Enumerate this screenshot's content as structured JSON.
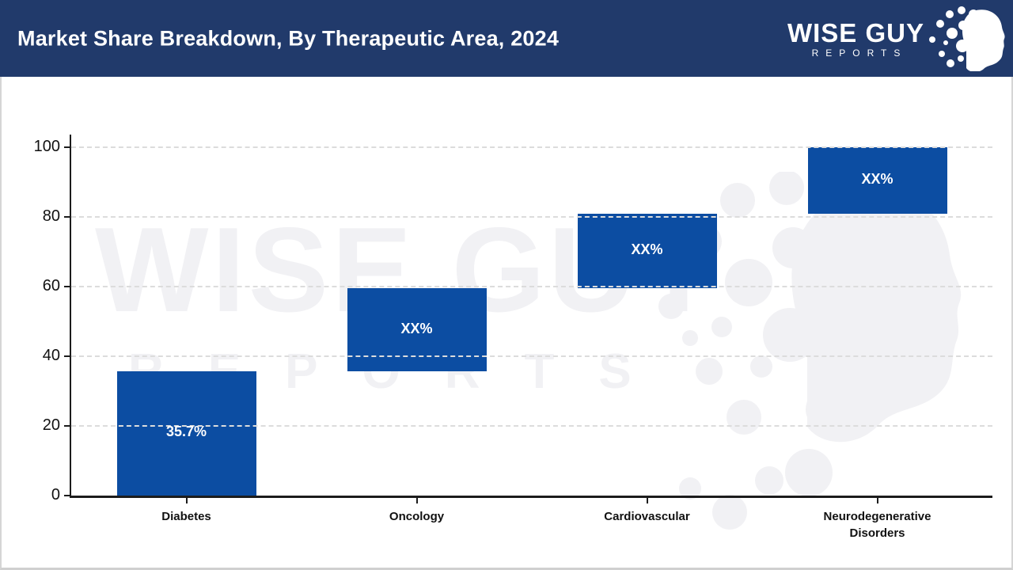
{
  "header": {
    "title": "Market Share Breakdown, By Therapeutic Area, 2024",
    "logo": {
      "line1": "WISE GUY",
      "line2": "REPORTS"
    }
  },
  "watermark": {
    "line1": "WISE GUY",
    "line2": "REPORTS"
  },
  "colors": {
    "header_bg": "#213a6b",
    "bar": "#0c4da2",
    "bar_label": "#ffffff",
    "axis": "#1c1c1c",
    "grid": "#dcdcdc",
    "watermark": "#f1f1f4",
    "page_border": "#d5d5d5"
  },
  "chart_data": {
    "type": "bar",
    "subtype": "waterfall",
    "title": "Market Share Breakdown, By Therapeutic Area, 2024",
    "xlabel": "",
    "ylabel": "",
    "ylim": [
      0,
      100
    ],
    "yticks": [
      0,
      20,
      40,
      60,
      80,
      100
    ],
    "grid": "dashed-horizontal-over-bars",
    "legend": "none",
    "categories": [
      "Diabetes",
      "Oncology",
      "Cardiovascular",
      "Neurodegenerative Disorders"
    ],
    "bars": [
      {
        "category": "Diabetes",
        "start": 0,
        "end": 35.7,
        "label": "35.7%"
      },
      {
        "category": "Oncology",
        "start": 35.7,
        "end": 59.5,
        "label": "XX%"
      },
      {
        "category": "Cardiovascular",
        "start": 59.5,
        "end": 81,
        "label": "XX%"
      },
      {
        "category": "Neurodegenerative Disorders",
        "start": 81,
        "end": 100,
        "label": "XX%"
      }
    ]
  }
}
